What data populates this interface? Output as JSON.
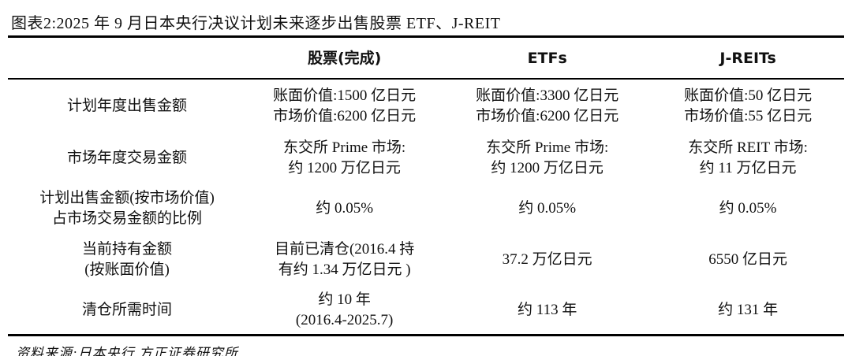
{
  "title": "图表2:2025 年 9 月日本央行决议计划未来逐步出售股票 ETF、J-REIT",
  "table": {
    "columns": [
      "",
      "股票(完成)",
      "ETFs",
      "J-REITs"
    ],
    "rows": [
      {
        "label": "计划年度出售金额",
        "cells": [
          "账面价值:1500 亿日元\n市场价值:6200 亿日元",
          "账面价值:3300 亿日元\n市场价值:6200 亿日元",
          "账面价值:50 亿日元\n市场价值:55 亿日元"
        ]
      },
      {
        "label": "市场年度交易金额",
        "cells": [
          "东交所 Prime 市场:\n约 1200 万亿日元",
          "东交所 Prime 市场:\n约 1200 万亿日元",
          "东交所 REIT 市场:\n约 11 万亿日元"
        ]
      },
      {
        "label": "计划出售金额(按市场价值)\n占市场交易金额的比例",
        "cells": [
          "约 0.05%",
          "约 0.05%",
          "约 0.05%"
        ]
      },
      {
        "label": "当前持有金额\n(按账面价值)",
        "cells": [
          "目前已清仓(2016.4 持\n有约 1.34 万亿日元 )",
          "37.2 万亿日元",
          "6550 亿日元"
        ]
      },
      {
        "label": "清仓所需时间",
        "cells": [
          "约 10 年\n(2016.4-2025.7)",
          "约 113 年",
          "约 131 年"
        ]
      }
    ]
  },
  "footer": "资料来源:日本央行,方正证券研究所"
}
